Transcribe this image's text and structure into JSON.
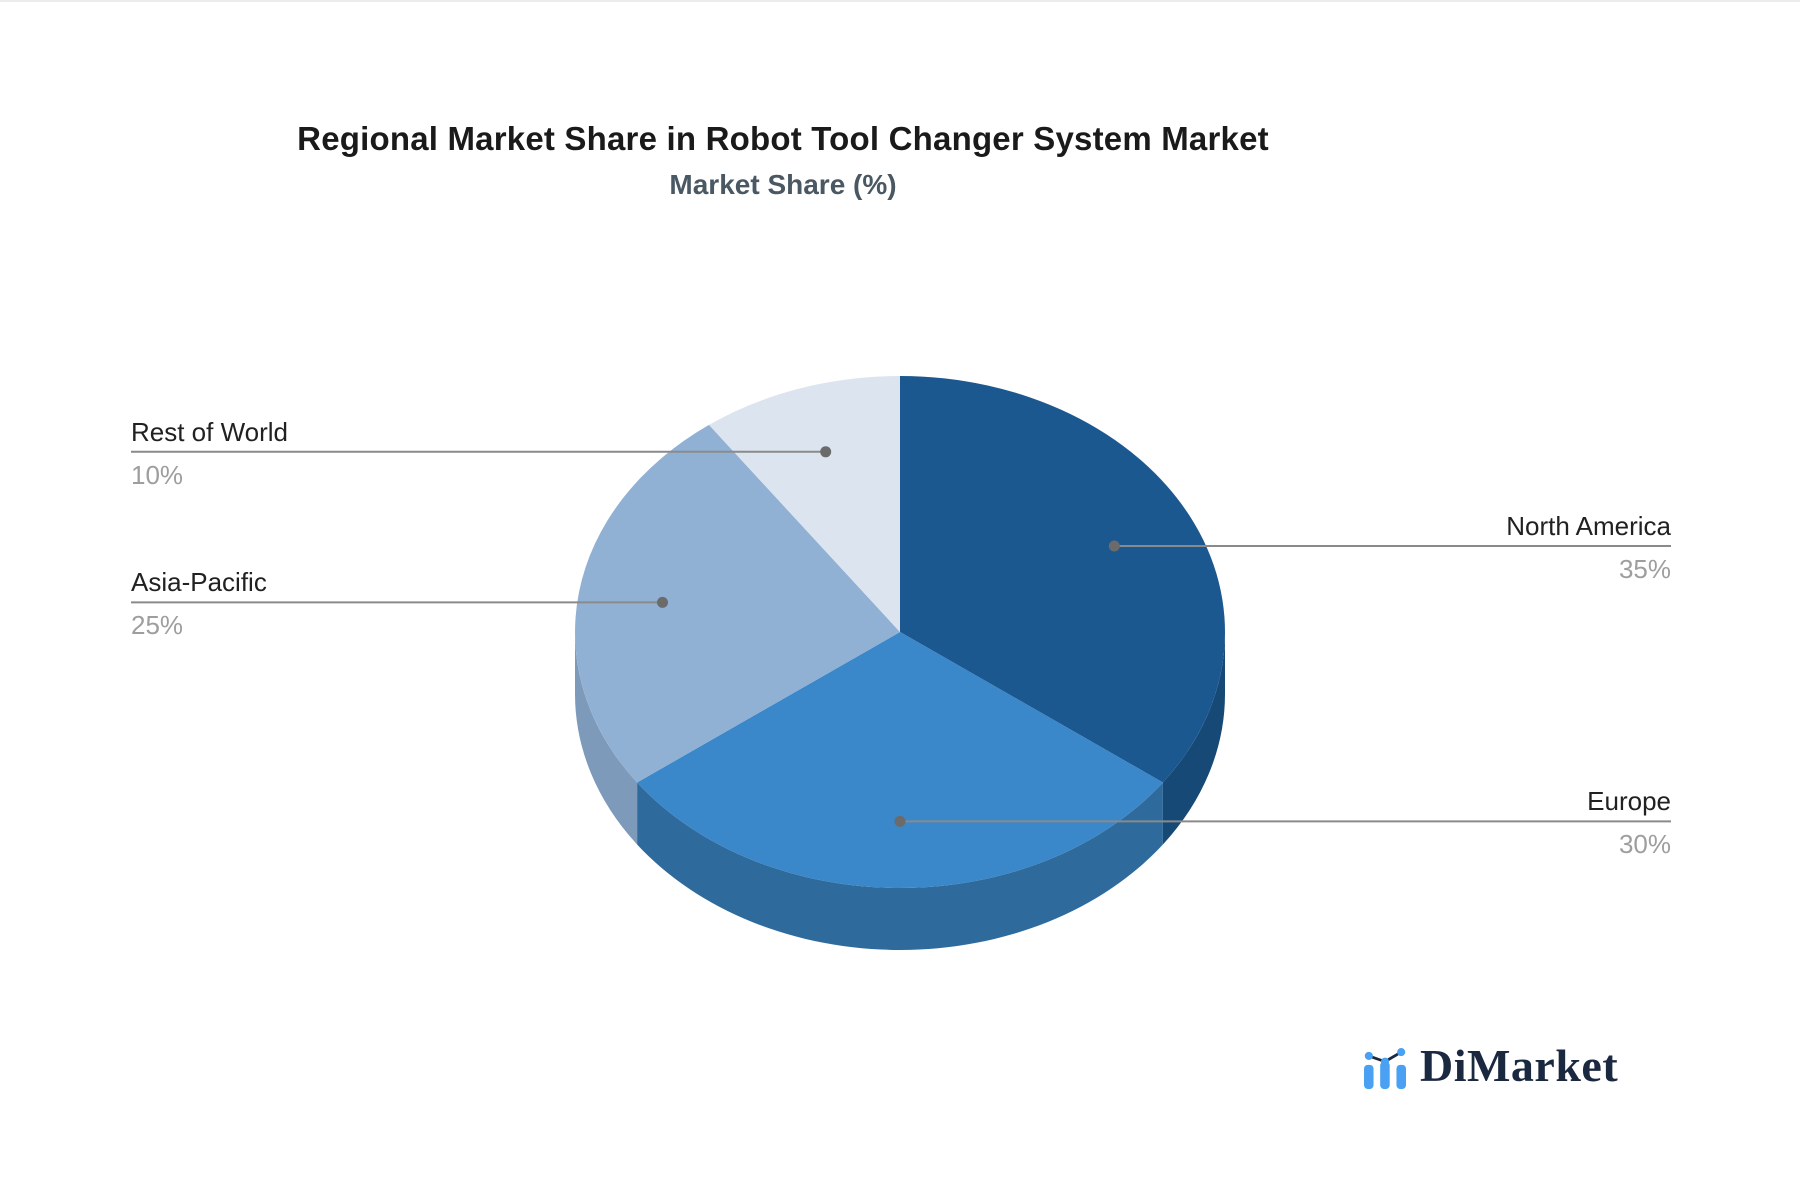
{
  "title": "Regional Market Share in Robot Tool Changer System Market",
  "subtitle": "Market Share (%)",
  "logo": {
    "text": "DiMarket",
    "icon": "bar-line-chart-icon"
  },
  "chart_data": {
    "type": "pie",
    "title": "Regional Market Share in Robot Tool Changer System Market",
    "subtitle": "Market Share (%)",
    "unit": "%",
    "effect": "3d",
    "direction": "clockwise",
    "start_angle_deg": 0,
    "slices": [
      {
        "label": "North America",
        "value": 35,
        "display": "35%",
        "color": "#1C5890",
        "side_color": "#174977"
      },
      {
        "label": "Europe",
        "value": 30,
        "display": "30%",
        "color": "#3A87C9",
        "side_color": "#2E6B9C"
      },
      {
        "label": "Asia-Pacific",
        "value": 25,
        "display": "25%",
        "color": "#90B0D4",
        "side_color": "#7E9ABA"
      },
      {
        "label": "Rest of World",
        "value": 10,
        "display": "10%",
        "color": "#DCE4EF",
        "side_color": "#B9C6D8"
      }
    ],
    "legend_position": "callouts",
    "callout_line_color": "#8a8a8a",
    "callout_dot_color": "#6b6b6b",
    "label_color": "#212121",
    "value_color": "#9e9e9e"
  }
}
